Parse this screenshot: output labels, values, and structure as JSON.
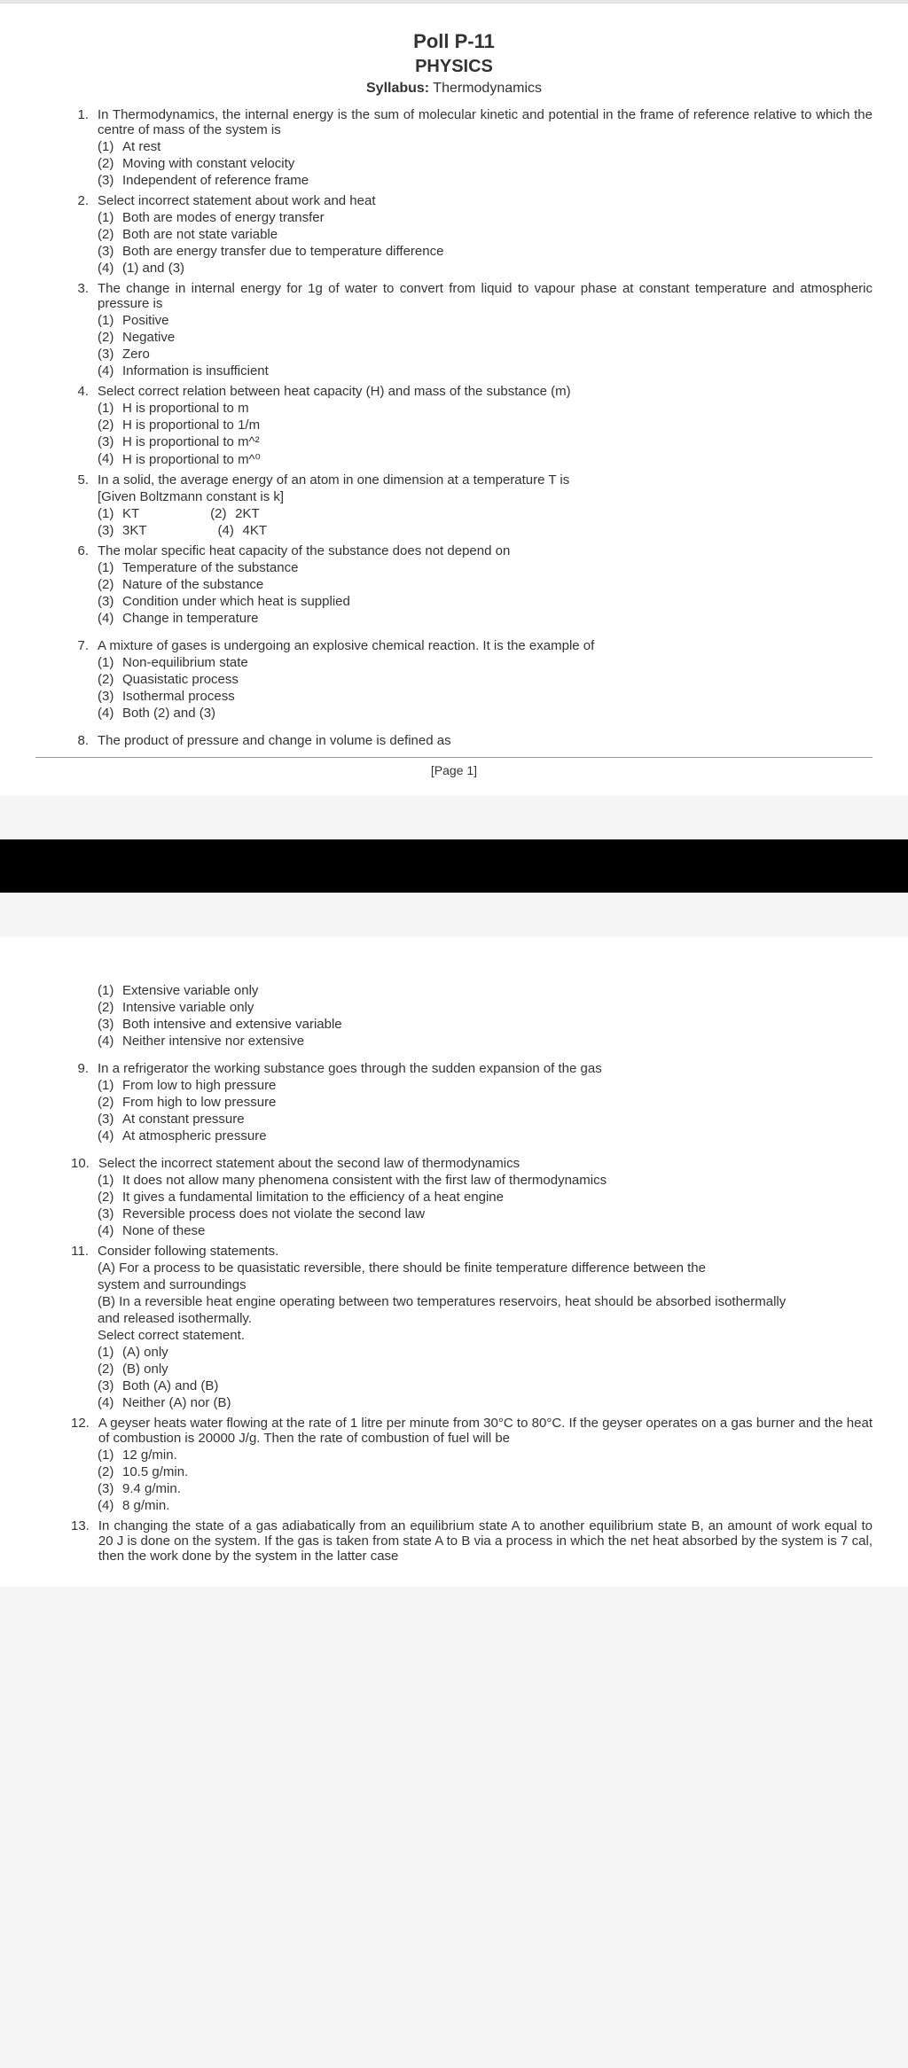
{
  "header": {
    "poll": "Poll P-11",
    "subject": "PHYSICS",
    "syllabus_label": "Syllabus:",
    "syllabus_topic": "Thermodynamics"
  },
  "page_footer": "[Page 1]",
  "questions_p1": [
    {
      "n": "1.",
      "text": "In Thermodynamics, the internal energy is the sum of molecular kinetic and potential in the frame of reference relative to which the centre of mass of the system is",
      "opts": [
        {
          "l": "(1)",
          "t": "At rest"
        },
        {
          "l": "(2)",
          "t": "Moving with constant velocity"
        },
        {
          "l": "(3)",
          "t": "Independent of reference frame"
        }
      ]
    },
    {
      "n": "2.",
      "text": "Select incorrect statement about work and heat",
      "opts": [
        {
          "l": "(1)",
          "t": "Both are modes of energy transfer"
        },
        {
          "l": "(2)",
          "t": "Both are not state variable"
        },
        {
          "l": "(3)",
          "t": "Both are energy transfer due to temperature difference"
        },
        {
          "l": "(4)",
          "t": "(1) and (3)"
        }
      ]
    },
    {
      "n": "3.",
      "text": "The change in internal energy for 1g of water to convert from liquid to vapour phase at constant temperature and atmospheric pressure is",
      "opts": [
        {
          "l": "(1)",
          "t": "Positive"
        },
        {
          "l": "(2)",
          "t": "Negative"
        },
        {
          "l": "(3)",
          "t": "Zero"
        },
        {
          "l": "(4)",
          "t": "Information is insufficient"
        }
      ]
    },
    {
      "n": "4.",
      "text": "Select correct relation between heat capacity (H) and mass of the substance (m)",
      "opts": [
        {
          "l": "(1)",
          "t": "H is proportional to m"
        },
        {
          "l": "(2)",
          "t": "H is proportional to 1/m"
        },
        {
          "l": "(3)",
          "t": "H is proportional to m^²"
        },
        {
          "l": "(4)",
          "t": "H is proportional to m^⁰"
        }
      ]
    },
    {
      "n": "5.",
      "text": "In a solid, the average energy of an atom in one dimension at a temperature T is",
      "sub": "[Given Boltzmann constant is k]",
      "inline_opts": [
        [
          {
            "l": "(1)",
            "t": "KT"
          },
          {
            "l": "(2)",
            "t": "2KT"
          }
        ],
        [
          {
            "l": "(3)",
            "t": "3KT"
          },
          {
            "l": "(4)",
            "t": "4KT"
          }
        ]
      ]
    },
    {
      "n": "6.",
      "spaced": true,
      "text": "The molar specific heat capacity of the substance does not depend on",
      "opts": [
        {
          "l": "(1)",
          "t": "Temperature of the substance"
        },
        {
          "l": "(2)",
          "t": "Nature of the substance"
        },
        {
          "l": "(3)",
          "t": "Condition under which heat is supplied"
        },
        {
          "l": "(4)",
          "t": "Change in temperature"
        }
      ]
    },
    {
      "n": "7.",
      "spaced": true,
      "text": "A mixture of gases is undergoing an explosive chemical reaction. It is the example of",
      "opts": [
        {
          "l": "(1)",
          "t": "Non-equilibrium state"
        },
        {
          "l": "(2)",
          "t": "Quasistatic process"
        },
        {
          "l": "(3)",
          "t": "Isothermal process"
        },
        {
          "l": "(4)",
          "t": "Both (2) and (3)"
        }
      ]
    },
    {
      "n": "8.",
      "text": "The product of pressure and change in volume is defined as"
    }
  ],
  "questions_p2": [
    {
      "opts_only": true,
      "spaced": true,
      "opts": [
        {
          "l": "(1)",
          "t": "Extensive variable only"
        },
        {
          "l": "(2)",
          "t": "Intensive variable only"
        },
        {
          "l": "(3)",
          "t": "Both intensive and extensive variable"
        },
        {
          "l": "(4)",
          "t": "Neither intensive nor extensive"
        }
      ]
    },
    {
      "n": "9.",
      "spaced": true,
      "text": "In a refrigerator the working substance goes through the sudden expansion of the gas",
      "opts": [
        {
          "l": "(1)",
          "t": "From low to high pressure"
        },
        {
          "l": "(2)",
          "t": "From high to low pressure"
        },
        {
          "l": "(3)",
          "t": "At constant pressure"
        },
        {
          "l": "(4)",
          "t": "At atmospheric pressure"
        }
      ]
    },
    {
      "n": "10.",
      "text": "Select the incorrect statement about the second law of thermodynamics",
      "opts": [
        {
          "l": "(1)",
          "t": "It does not allow many phenomena consistent with the first law of thermodynamics"
        },
        {
          "l": "(2)",
          "t": "It gives a fundamental limitation to the efficiency of a heat engine"
        },
        {
          "l": "(3)",
          "t": "Reversible process does not violate the second law"
        },
        {
          "l": "(4)",
          "t": "None of these"
        }
      ]
    },
    {
      "n": "11.",
      "text": "Consider following statements.",
      "lines": [
        "(A) For a process to be quasistatic reversible, there should be finite temperature difference between the",
        "      system and surroundings",
        "(B) In a reversible heat engine operating between two temperatures reservoirs, heat should be absorbed isothermally",
        "      and released isothermally.",
        "Select correct statement."
      ],
      "opts": [
        {
          "l": "(1)",
          "t": "(A) only"
        },
        {
          "l": "(2)",
          "t": "(B) only"
        },
        {
          "l": "(3)",
          "t": "Both (A) and (B)"
        },
        {
          "l": "(4)",
          "t": "Neither (A) nor (B)"
        }
      ]
    },
    {
      "n": "12.",
      "text": "A geyser heats water flowing at the rate of 1 litre per minute from 30°C to 80°C. If the geyser operates on a gas burner and the heat of combustion is 20000 J/g. Then the rate of combustion of fuel will be",
      "opts": [
        {
          "l": "(1)",
          "t": "12 g/min."
        },
        {
          "l": "(2)",
          "t": "10.5 g/min."
        },
        {
          "l": "(3)",
          "t": "9.4 g/min."
        },
        {
          "l": "(4)",
          "t": "8 g/min."
        }
      ]
    },
    {
      "n": "13.",
      "text": "In changing the state of a gas adiabatically from an equilibrium state A to another equilibrium state B, an amount of work equal to 20 J is done on the system. If the gas is taken from state A to B via a process in which the net heat absorbed by the system is 7 cal, then the work done by the system in the latter case"
    }
  ],
  "styles": {
    "text_color": "#333333",
    "background": "#ffffff",
    "page_bg": "#f5f5f5",
    "gap_color": "#000000",
    "font_family": "Arial, Helvetica, sans-serif",
    "title_fontsize": 22,
    "subject_fontsize": 20,
    "body_fontsize": 15
  }
}
